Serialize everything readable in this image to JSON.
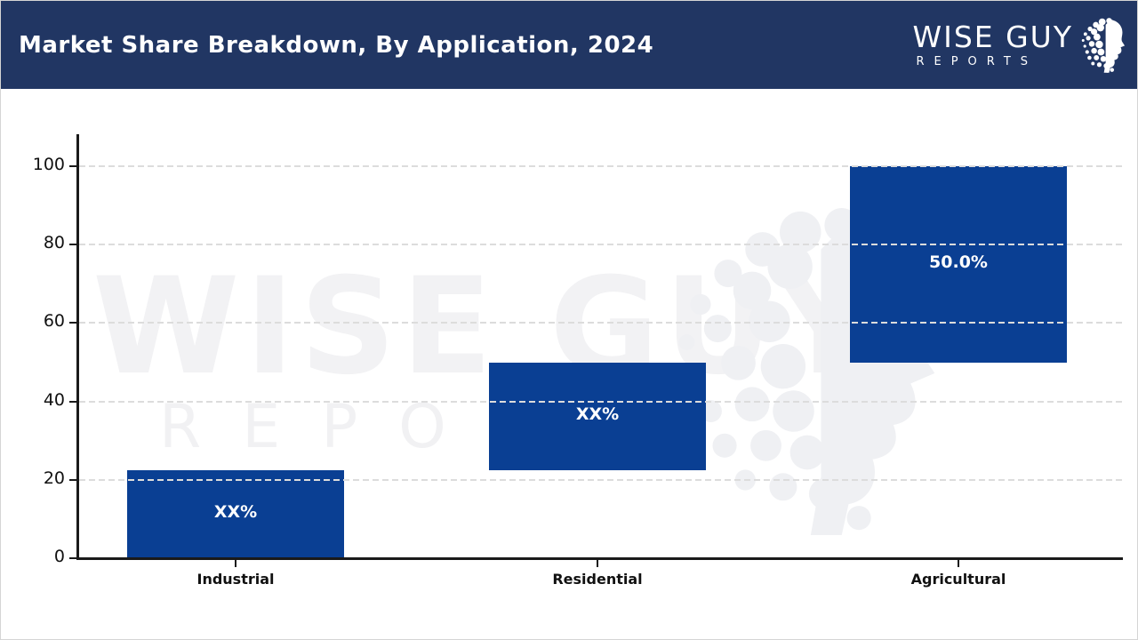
{
  "header": {
    "title": "Market Share Breakdown, By Application, 2024",
    "logo": {
      "line1": "WISE GUY",
      "line2": "REPORTS"
    }
  },
  "watermark": {
    "line1": "WISE GUY",
    "line2": "REPORTS"
  },
  "colors": {
    "header_bg": "#213663",
    "bar": "#0a3f93",
    "axis": "#1a1a1a",
    "gridline": "#dcdcdc",
    "watermark": "#f2f2f4"
  },
  "chart_data": {
    "type": "bar",
    "subtype": "floating-waterfall",
    "title": "Market Share Breakdown, By Application, 2024",
    "categories": [
      "Industrial",
      "Residential",
      "Agricultural"
    ],
    "bars": [
      {
        "category": "Industrial",
        "start": 0,
        "end": 22.5,
        "label": "XX%"
      },
      {
        "category": "Residential",
        "start": 22.5,
        "end": 50.0,
        "label": "XX%"
      },
      {
        "category": "Agricultural",
        "start": 50.0,
        "end": 100.0,
        "label": "50.0%"
      }
    ],
    "yticks": [
      0,
      20,
      40,
      60,
      80,
      100
    ],
    "ylim": [
      0,
      108
    ],
    "xlabel": "",
    "ylabel": "",
    "grid": "horizontal-dashed",
    "legend": "none",
    "bar_color": "#0a3f93"
  }
}
